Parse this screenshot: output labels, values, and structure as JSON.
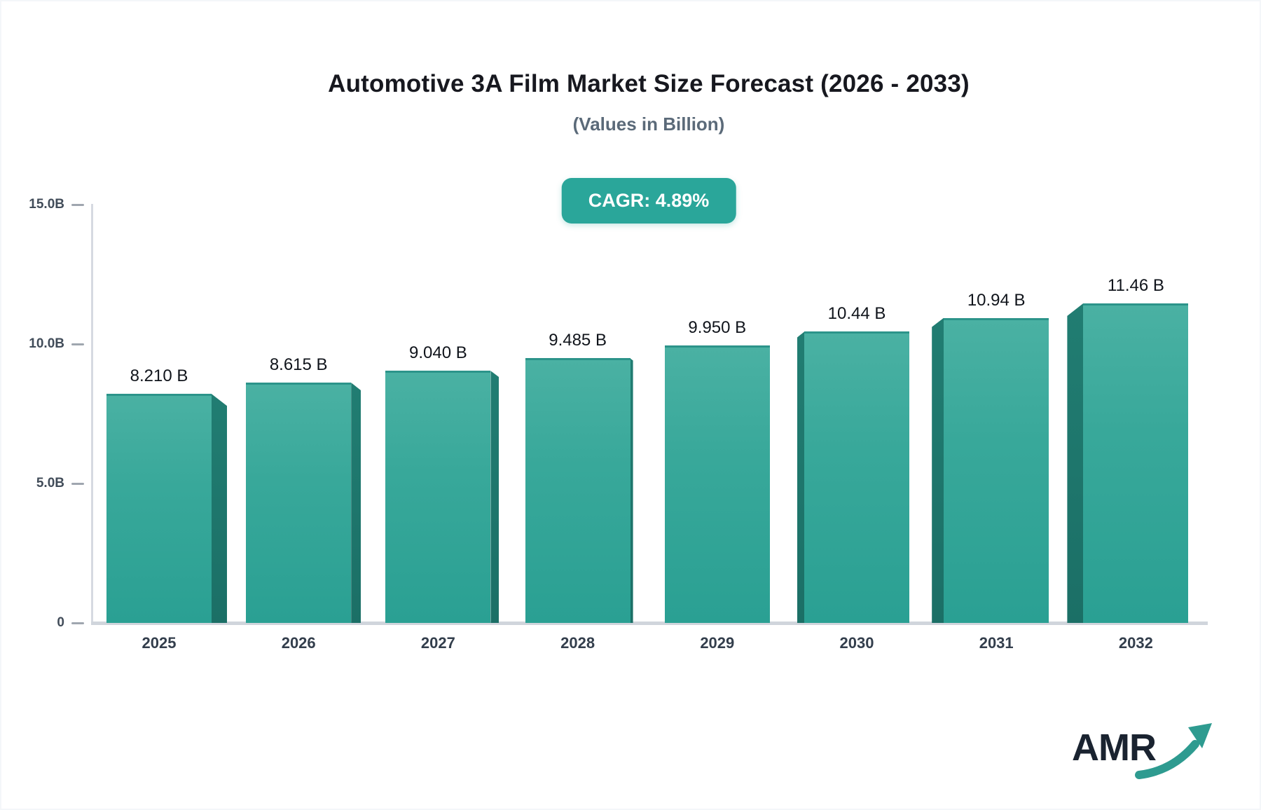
{
  "header": {
    "badge_label": "CAGR: 4.89%"
  },
  "chart_data": {
    "type": "bar",
    "title": "Automotive 3A Film Market Size Forecast (2026 - 2033)",
    "subtitle": "(Values in Billion)",
    "categories": [
      "2025",
      "2026",
      "2027",
      "2028",
      "2029",
      "2030",
      "2031",
      "2032"
    ],
    "values": [
      8.21,
      8.615,
      9.04,
      9.485,
      9.95,
      10.44,
      10.94,
      11.46
    ],
    "value_labels": [
      "8.210 B",
      "8.615 B",
      "9.040 B",
      "9.485 B",
      "9.950 B",
      "10.44 B",
      "10.94 B",
      "11.46 B"
    ],
    "yticks": {
      "values": [
        0,
        5,
        10,
        15
      ],
      "labels": [
        "0",
        "5.0B",
        "10.0B",
        "15.0B"
      ]
    },
    "ylim": [
      0,
      15
    ],
    "xlabel": "",
    "ylabel": "",
    "grid": false,
    "legend": "none",
    "bar_color": "#38a89a",
    "bar_side_color": "#1e7a6f",
    "accent_color": "#2aa69a"
  },
  "logo": {
    "text": "AMR"
  }
}
